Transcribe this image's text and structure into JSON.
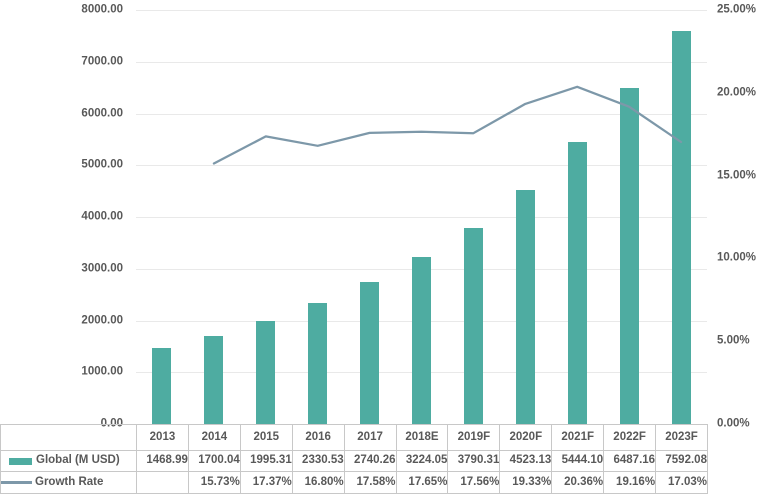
{
  "chart_data": {
    "type": "combo-bar-line",
    "title": "",
    "categories": [
      "2013",
      "2014",
      "2015",
      "2016",
      "2017",
      "2018E",
      "2019F",
      "2020F",
      "2021F",
      "2022F",
      "2023F"
    ],
    "series": [
      {
        "name": "Global (M USD)",
        "chart": "bar",
        "axis": "primary",
        "color": "#4EACA1",
        "values": [
          1468.99,
          1700.04,
          1995.31,
          2330.53,
          2740.26,
          3224.05,
          3790.31,
          4523.13,
          5444.1,
          6487.16,
          7592.08
        ],
        "labels": [
          "1468.99",
          "1700.04",
          "1995.31",
          "2330.53",
          "2740.26",
          "3224.05",
          "3790.31",
          "4523.13",
          "5444.10",
          "6487.16",
          "7592.08"
        ]
      },
      {
        "name": "Growth Rate",
        "chart": "line",
        "axis": "secondary",
        "color": "#7D98A9",
        "values": [
          null,
          15.73,
          17.37,
          16.8,
          17.58,
          17.65,
          17.56,
          19.33,
          20.36,
          19.16,
          17.03
        ],
        "labels": [
          "",
          "15.73%",
          "17.37%",
          "16.80%",
          "17.58%",
          "17.65%",
          "17.56%",
          "19.33%",
          "20.36%",
          "19.16%",
          "17.03%"
        ]
      }
    ],
    "primary_axis": {
      "min": 0,
      "max": 8000,
      "step": 1000,
      "tick_labels": [
        "8000.00",
        "7000.00",
        "6000.00",
        "5000.00",
        "4000.00",
        "3000.00",
        "2000.00",
        "1000.00",
        "0.00"
      ]
    },
    "secondary_axis": {
      "min": 0,
      "max": 25,
      "step": 5,
      "tick_labels": [
        "25.00%",
        "20.00%",
        "15.00%",
        "10.00%",
        "5.00%",
        "0.00%"
      ]
    },
    "gridlines": "horizontal",
    "legend_position": "data-table-left"
  },
  "colors": {
    "bar": "#4EACA1",
    "line": "#7D98A9",
    "text": "#595959",
    "gridline": "#E9E9E9",
    "table_border": "#C8C8C8",
    "background": "#FFFFFF"
  }
}
